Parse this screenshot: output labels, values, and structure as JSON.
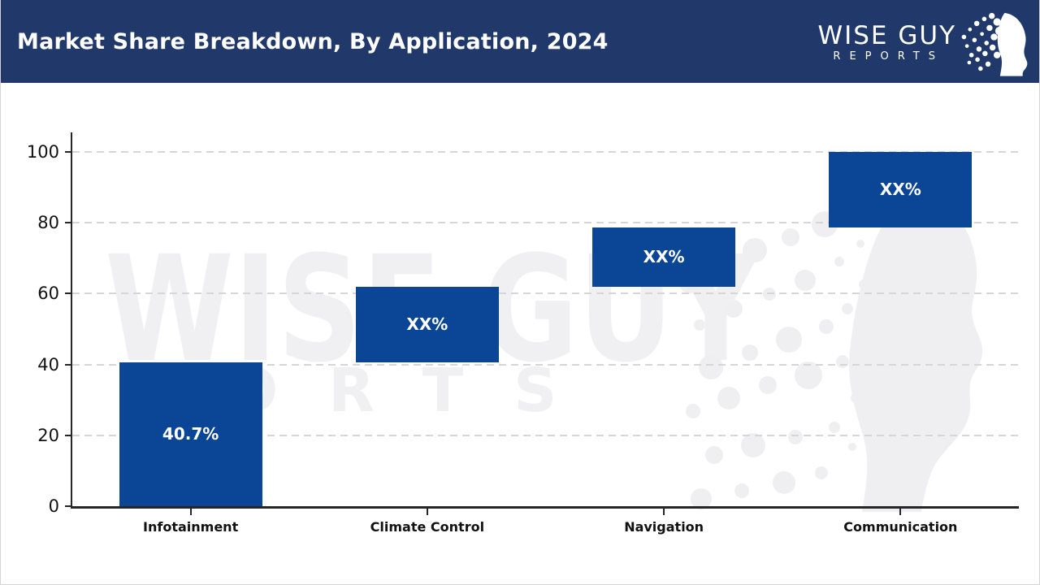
{
  "header": {
    "title": "Market Share Breakdown, By Application, 2024",
    "bg_color": "#20386a",
    "brand": {
      "line1": "WISE GUY",
      "line2": "REPORTS"
    }
  },
  "watermark": {
    "line1": "WISE GUY",
    "line2": "PORTS",
    "full_text": "WISE GUY REPORTS"
  },
  "chart_data": {
    "type": "bar",
    "subtype": "waterfall",
    "title": "Market Share Breakdown, By Application, 2024",
    "xlabel": "",
    "ylabel": "",
    "categories": [
      "Infotainment",
      "Climate Control",
      "Navigation",
      "Communication"
    ],
    "series": [
      {
        "name": "Market Share",
        "segments": [
          {
            "category": "Infotainment",
            "start": 0,
            "end": 40.7,
            "value": 40.7,
            "label": "40.7%"
          },
          {
            "category": "Climate Control",
            "start": 40.7,
            "end": 61.9,
            "value": 21.2,
            "label": "XX%"
          },
          {
            "category": "Navigation",
            "start": 61.9,
            "end": 78.7,
            "value": 16.8,
            "label": "XX%"
          },
          {
            "category": "Communication",
            "start": 78.7,
            "end": 100,
            "value": 21.3,
            "label": "XX%"
          }
        ]
      }
    ],
    "ylim": [
      0,
      100
    ],
    "yticks": [
      0,
      20,
      40,
      60,
      80,
      100
    ],
    "grid": "horizontal-dashed",
    "legend": "none",
    "bar_color": "#0b4596",
    "bar_label_color": "#ffffff",
    "axis_color": "#262626",
    "grid_color": "#d6d6d6"
  }
}
